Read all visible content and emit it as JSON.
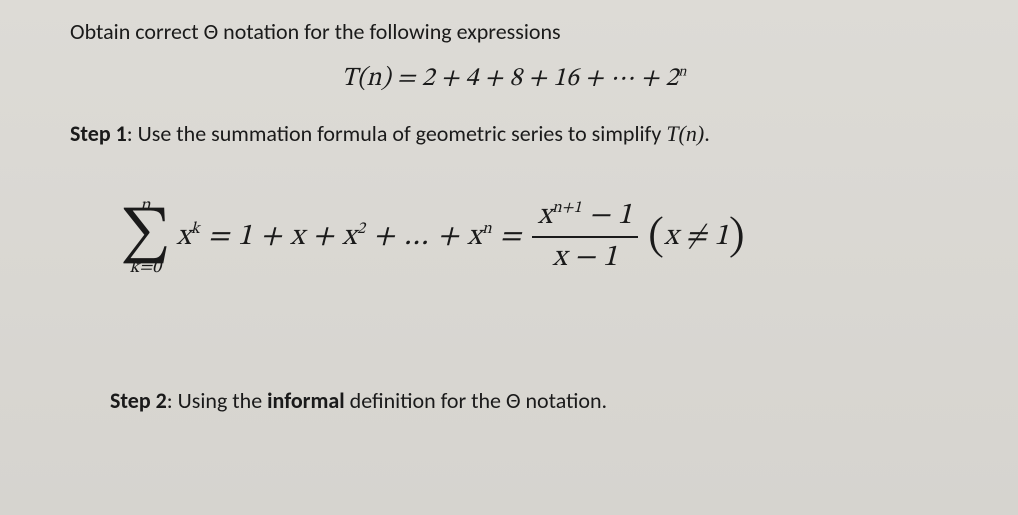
{
  "text_color": "#1a1a1a",
  "background_color": "#d8d6d2",
  "prompt": "Obtain correct Θ notation for the following expressions",
  "tn_equation": "T(n) = 2 + 4 + 8 + 16 + ⋯ + 2",
  "tn_exponent": "n",
  "step1_label": "Step 1",
  "step1_text_a": ": Use the summation formula of geometric series to simplify ",
  "step1_tn": "T(n)",
  "step1_period": ".",
  "sigma_top": "n",
  "sigma_symbol": "∑",
  "sigma_bottom": "k=0",
  "series_lhs_xk_base": "x",
  "series_lhs_xk_exp": "k",
  "series_eq1": " = 1 + x + x",
  "series_x2_exp": "2",
  "series_mid": " + … + x",
  "series_xn_exp": "n",
  "series_eq2": " =  ",
  "frac_num_a": "x",
  "frac_num_exp": "n+1",
  "frac_num_b": " − 1",
  "frac_den": "x − 1",
  "cond_open": "(",
  "cond_body": "x ≠ 1",
  "cond_close": ")",
  "step2_label": "Step 2",
  "step2_text_a": ": Using the ",
  "step2_bold": "informal",
  "step2_text_b": " definition for the Θ notation."
}
